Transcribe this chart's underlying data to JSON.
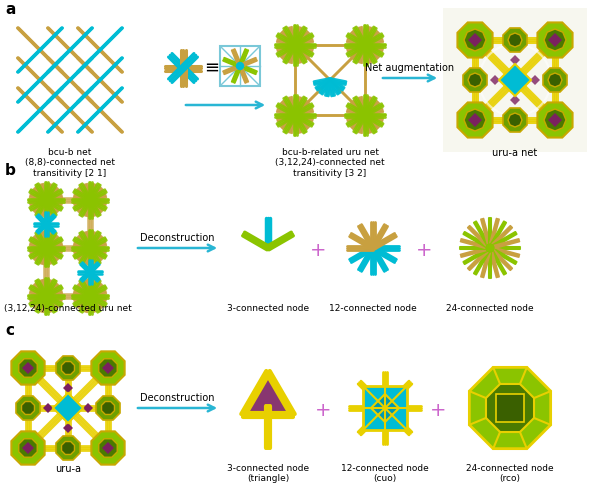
{
  "colors": {
    "cyan": "#00BCD4",
    "cyan2": "#29B6D4",
    "gold": "#C8A040",
    "gold2": "#D4A830",
    "lime": "#8BC400",
    "lime2": "#A0CC00",
    "dark_lime": "#4A7A00",
    "dark_green": "#3A6600",
    "purple": "#7B2060",
    "yellow": "#D4C000",
    "yellow2": "#E8D000",
    "bg": "#FFFFFF",
    "arrow_cyan": "#29B6D4",
    "text": "#000000",
    "plus": "#CC66CC",
    "light_green_bg": "#D0E060"
  },
  "label_bcu_b": "bcu-b net\n(8,8)-connected net\ntransitivity [2 1]",
  "label_bcu_b_related": "bcu-b-related uru net\n(3,12,24)-connected net\ntransitivity [3 2]",
  "label_uru_a_net": "uru-a net",
  "label_net_aug": "Net augmentation",
  "label_deconstruction_b": "Deconstruction",
  "label_deconstruction_c": "Deconstruction",
  "label_3cn_b": "3-connected node",
  "label_12cn_b": "12-connected node",
  "label_24cn_b": "24-connected node",
  "label_3cn_c": "3-connected node\n(triangle)",
  "label_12cn_c": "12-connected node\n(cuo)",
  "label_24cn_c": "24-connected node\n(rco)",
  "label_uru_net_b": "(3,12,24)-connected uru net",
  "label_uru_a_c": "uru-a"
}
